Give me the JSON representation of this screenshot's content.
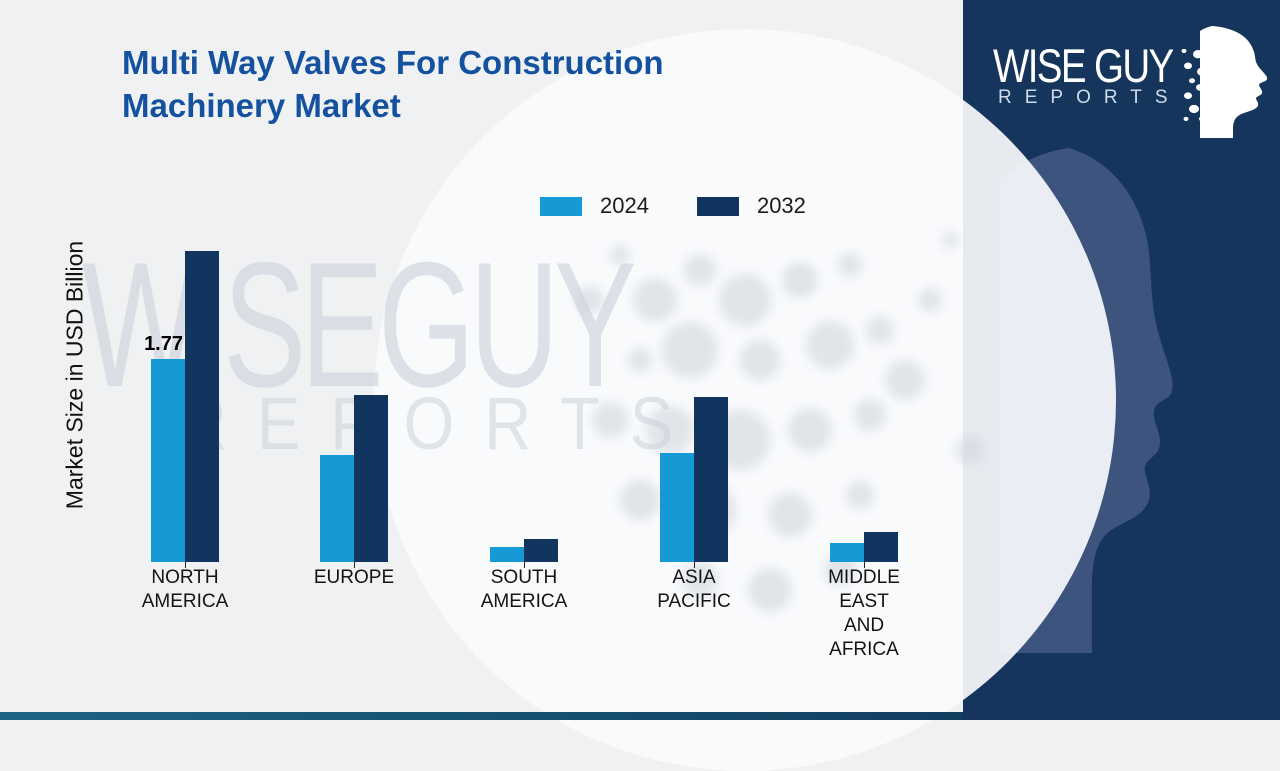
{
  "page": {
    "background": "#f0f1f2"
  },
  "header": {
    "title": "Multi Way Valves For Construction Machinery Market",
    "title_color": "#14529f"
  },
  "brand": {
    "panel_color": "#16355c",
    "logo_text": "WISE GUY",
    "logo_subtext": "REPORTS",
    "watermark_text": "WISEGUY",
    "watermark_subtext": "REPORTS",
    "logo_face_icon": "dotted-head-profile"
  },
  "footer": {
    "bar_color_left": "#1d6484",
    "bar_color_right": "#123d60"
  },
  "chart_data": {
    "type": "bar",
    "title": "Multi Way Valves For Construction Machinery Market",
    "xlabel": "",
    "ylabel": "Market Size in USD Billion",
    "categories": [
      "NORTH AMERICA",
      "EUROPE",
      "SOUTH AMERICA",
      "ASIA PACIFIC",
      "MIDDLE EAST AND AFRICA"
    ],
    "series": [
      {
        "name": "2024",
        "color": "#1799d6",
        "values": [
          1.77,
          0.93,
          0.13,
          0.95,
          0.17
        ]
      },
      {
        "name": "2032",
        "color": "#123560",
        "values": [
          2.71,
          1.46,
          0.2,
          1.44,
          0.26
        ]
      }
    ],
    "data_labels": [
      {
        "category": "NORTH AMERICA",
        "series": "2024",
        "text": "1.77"
      }
    ],
    "legend_position": "top-center",
    "grid": false,
    "ylim": [
      0,
      2.9
    ]
  }
}
